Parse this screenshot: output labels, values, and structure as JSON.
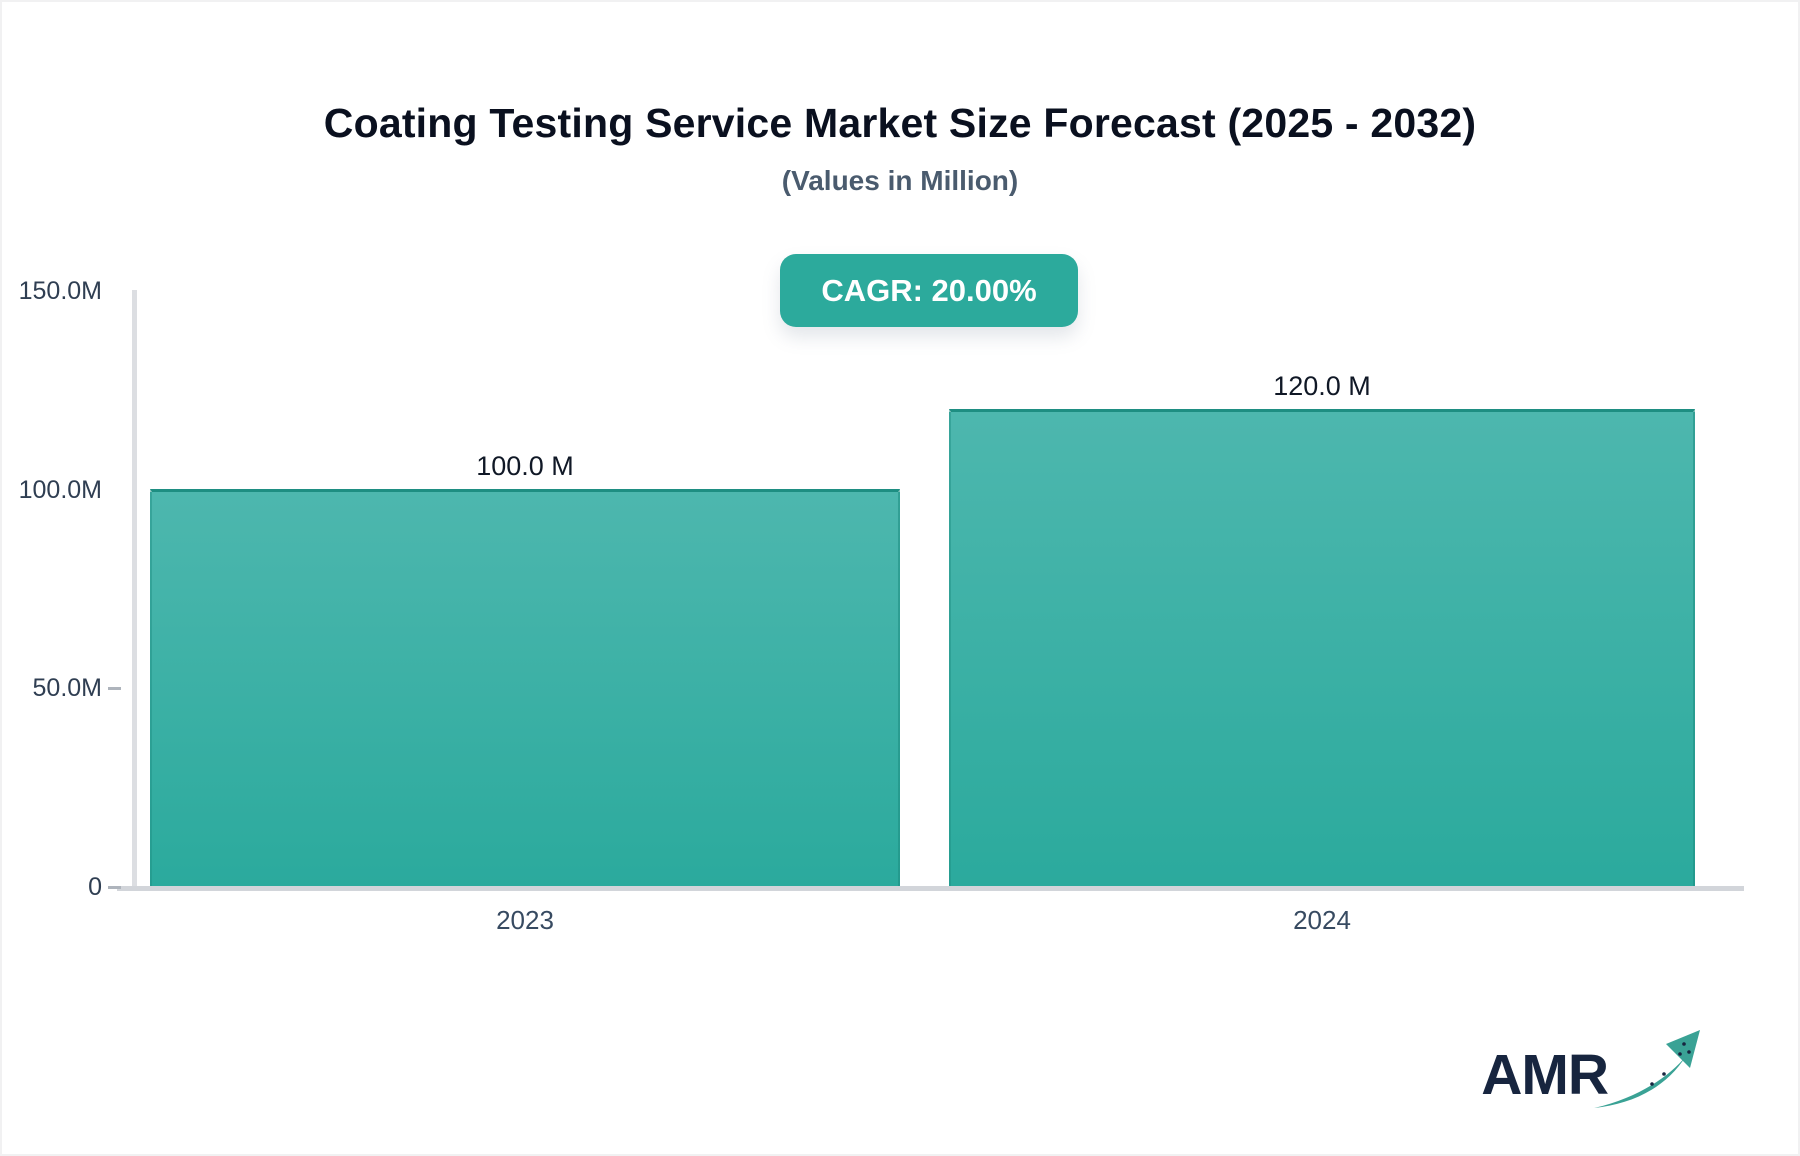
{
  "title": "Coating Testing Service Market Size Forecast (2025 - 2032)",
  "subtitle": "(Values in Million)",
  "cagr_badge": "CAGR: 20.00%",
  "chart_data": {
    "type": "bar",
    "title": "Coating Testing Service Market Size Forecast (2025 - 2032)",
    "subtitle": "(Values in Million)",
    "cagr_percent": 20.0,
    "categories": [
      "2023",
      "2024"
    ],
    "values": [
      100.0,
      120.0
    ],
    "value_labels": [
      "100.0 M",
      "120.0 M"
    ],
    "ylim": [
      0,
      150
    ],
    "yticks": [
      {
        "label": "150.0M",
        "value": 150,
        "dash": false
      },
      {
        "label": "100.0M",
        "value": 100,
        "dash": false
      },
      {
        "label": "50.0M",
        "value": 50,
        "dash": true
      },
      {
        "label": "0",
        "value": 0,
        "dash": true
      }
    ],
    "grid": false,
    "legend": "none"
  },
  "logo_text": "AMR",
  "colors": {
    "bar_top": "#4db7ae",
    "bar_bottom": "#2baa9d",
    "bar_edge": "#1e8e82",
    "badge_bg": "#2caa9c",
    "axis_line": "#dcdee2",
    "title_text": "#0a101f",
    "subtitle_text": "#4a5b6e",
    "logo_navy": "#17253f",
    "logo_teal": "#3aa295"
  }
}
